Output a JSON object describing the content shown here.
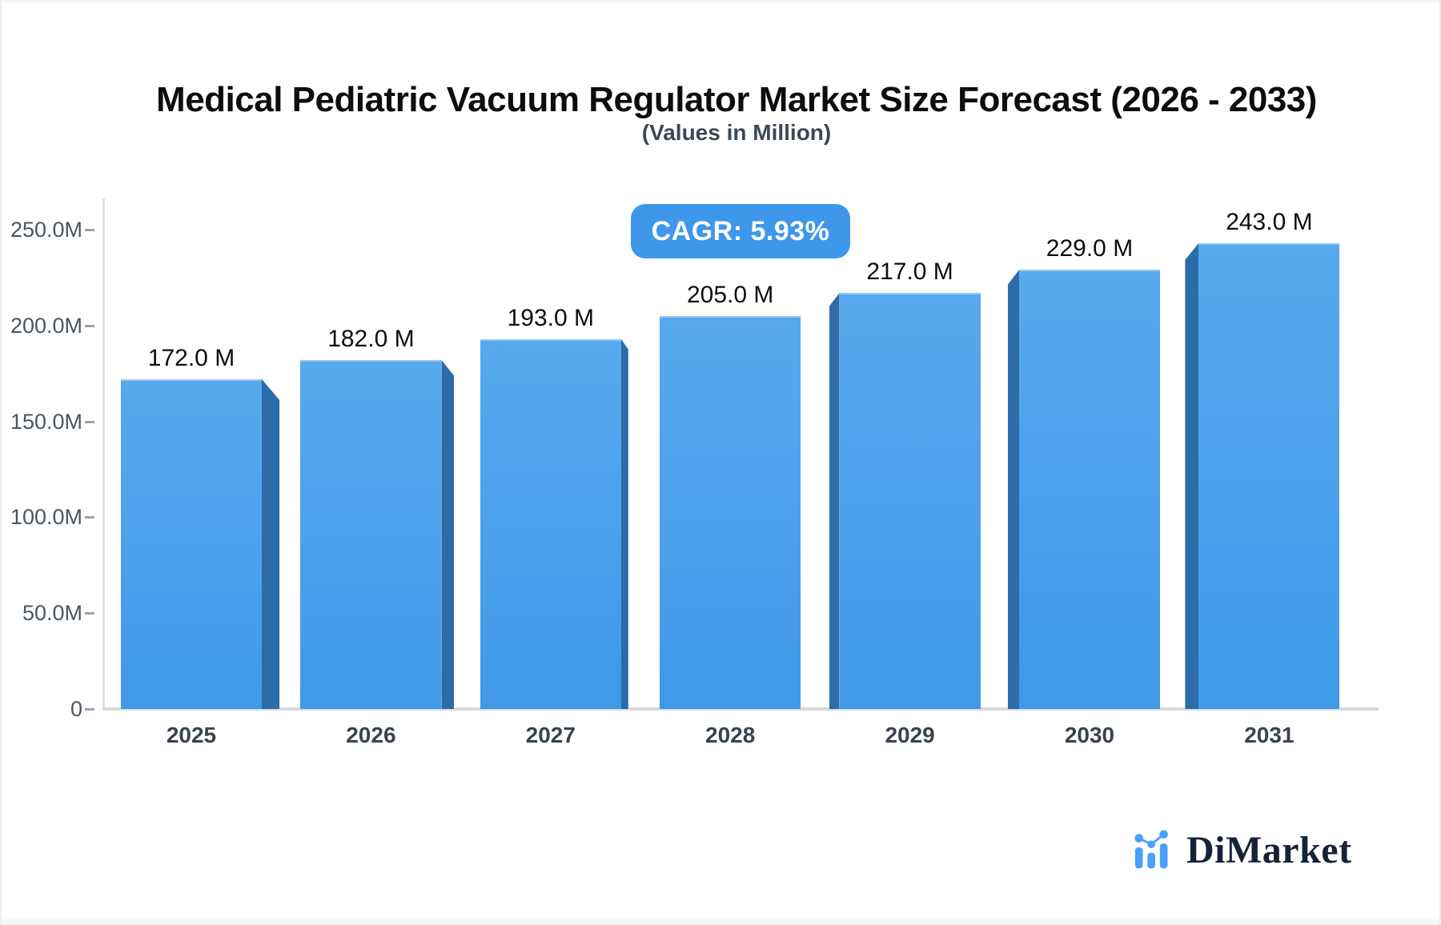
{
  "chart_data": {
    "type": "bar",
    "title": "Medical Pediatric Vacuum Regulator Market Size Forecast (2026 - 2033)",
    "subtitle": "(Values in Million)",
    "cagr_label": "CAGR: 5.93%",
    "categories": [
      "2025",
      "2026",
      "2027",
      "2028",
      "2029",
      "2030",
      "2031"
    ],
    "values": [
      172,
      182,
      193,
      205,
      217,
      229,
      243
    ],
    "value_labels": [
      "172.0 M",
      "182.0 M",
      "193.0 M",
      "205.0 M",
      "217.0 M",
      "229.0 M",
      "243.0 M"
    ],
    "ytick_labels": [
      "250.0M",
      "200.0M",
      "150.0M",
      "100.0M",
      "50.0M",
      "0"
    ],
    "ytick_values": [
      250,
      200,
      150,
      100,
      50,
      0
    ],
    "ylim": [
      0,
      250
    ],
    "xlabel": "",
    "ylabel": "",
    "grid": false,
    "legend": false,
    "bar_style": "3d-perspective"
  },
  "colors": {
    "bar_top": "#58A9ED",
    "bar_bottom": "#3F99E9",
    "bar_side": "#2B6CA9",
    "badge_bg": "#3E97EA",
    "badge_text": "#FFFFFF",
    "axis_line": "#DFE0E3",
    "tick_text": "#4A5663",
    "year_text": "#39434F",
    "value_text": "#0D0E10",
    "title_text": "#0C0D0E",
    "subtitle_text": "#3C4856",
    "brand_text": "#152238",
    "brand_icon": "#4BA1F7"
  },
  "branding": {
    "name": "DiMarket",
    "icon": "dimarket-bars-icon"
  }
}
